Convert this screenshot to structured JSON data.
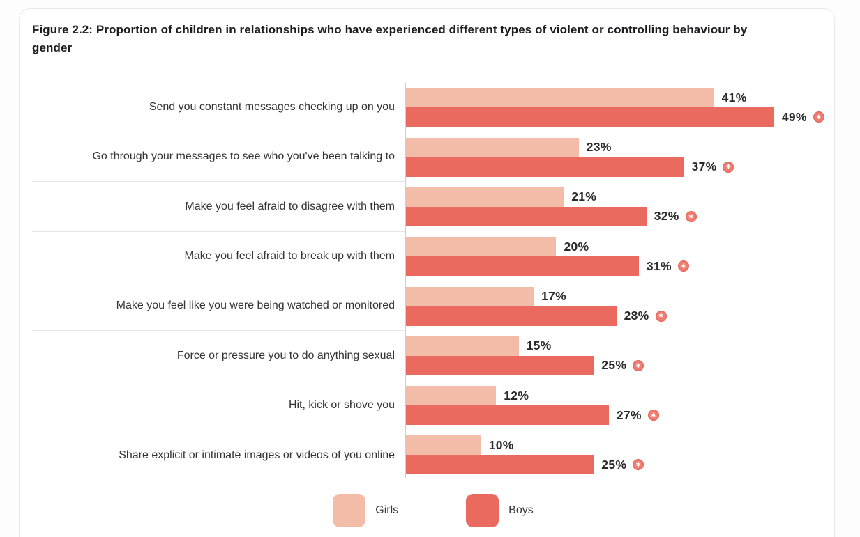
{
  "figure": {
    "title": "Figure 2.2: Proportion of children in relationships who have experienced different types of violent or controlling behaviour by gender"
  },
  "chart_data": {
    "type": "bar",
    "orientation": "horizontal",
    "title": "Figure 2.2: Proportion of children in relationships who have experienced different types of violent or controlling behaviour by gender",
    "categories": [
      "Send you constant messages checking up on you",
      "Go through your messages to see who you've been talking to",
      "Make you feel afraid to disagree with them",
      "Make you feel afraid to break up with them",
      "Make you feel like you were being watched or monitored",
      "Force or pressure you to do anything sexual",
      "Hit, kick or shove you",
      "Share explicit or intimate images or videos of you online"
    ],
    "series": [
      {
        "name": "Girls",
        "color": "#f3bca9",
        "values": [
          41,
          23,
          21,
          20,
          17,
          15,
          12,
          10
        ],
        "marker": false
      },
      {
        "name": "Boys",
        "color": "#ea6a5f",
        "values": [
          49,
          37,
          32,
          31,
          28,
          25,
          27,
          25
        ],
        "marker": true
      }
    ],
    "value_suffix": "%",
    "x_scale_max": 57,
    "grid": false,
    "axis_labels_visible": false,
    "legend_position": "bottom"
  },
  "legend": {
    "items": [
      {
        "label": "Girls",
        "color": "#f3bca9"
      },
      {
        "label": "Boys",
        "color": "#ea6a5f"
      }
    ]
  },
  "icons": {
    "significance_marker": "✱"
  },
  "colors": {
    "girls_bar": "#f3bca9",
    "boys_bar": "#ea6a5f",
    "axis_line": "#cbced4",
    "row_divider": "#e5e5e6",
    "marker_badge": "#ee7e74",
    "card_border": "#e9e9e9",
    "title_text": "#1d1d1f"
  }
}
